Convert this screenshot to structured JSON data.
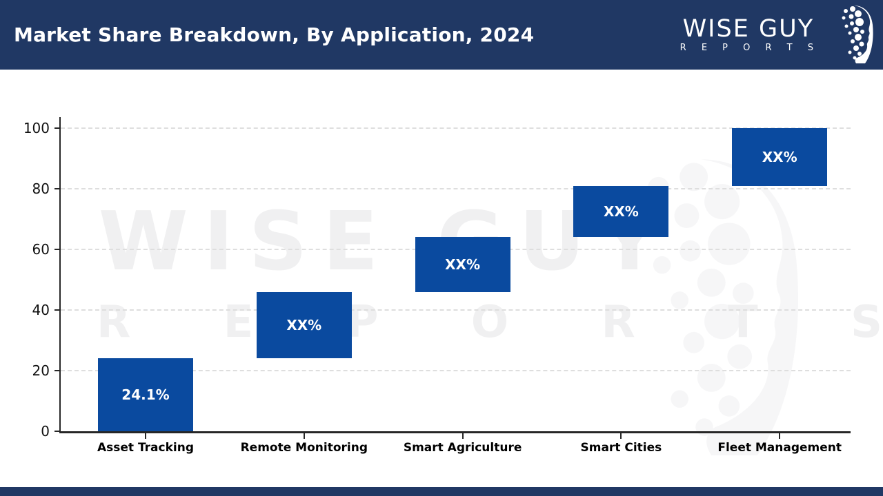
{
  "header": {
    "title": "Market Share Breakdown, By Application, 2024",
    "logo": {
      "line1": "WISE GUY",
      "line2": "R E P O R T S"
    }
  },
  "watermark": {
    "line1": "WISE GUY",
    "line2": "R E P O R T S"
  },
  "colors": {
    "header_bg": "#203864",
    "footer_bg": "#203864",
    "bar_fill": "#0a4a9f",
    "bar_label_text": "#ffffff",
    "grid_line": "#dedede",
    "axis_line": "#262626",
    "tick_label_text": "#111111",
    "title_text": "#ffffff",
    "watermark_text": "#f0f0f1"
  },
  "chart_data": {
    "type": "bar",
    "subtype": "waterfall-floating-segments",
    "title": "Market Share Breakdown, By Application, 2024",
    "categories": [
      "Asset Tracking",
      "Remote Monitoring",
      "Smart Agriculture",
      "Smart Cities",
      "Fleet Management"
    ],
    "series": [
      {
        "name": "Market Share",
        "segments": [
          {
            "category": "Asset Tracking",
            "start": 0,
            "end": 24.1,
            "label": "24.1%"
          },
          {
            "category": "Remote Monitoring",
            "start": 24.1,
            "end": 46,
            "label": "XX%"
          },
          {
            "category": "Smart Agriculture",
            "start": 46,
            "end": 64,
            "label": "XX%"
          },
          {
            "category": "Smart Cities",
            "start": 64,
            "end": 81,
            "label": "XX%"
          },
          {
            "category": "Fleet Management",
            "start": 81,
            "end": 100,
            "label": "XX%"
          }
        ]
      }
    ],
    "xlabel": "",
    "ylabel": "",
    "ylim": [
      0,
      104
    ],
    "yticks": [
      0,
      20,
      40,
      60,
      80,
      100
    ],
    "grid": "horizontal-dashed",
    "legend": "none"
  }
}
